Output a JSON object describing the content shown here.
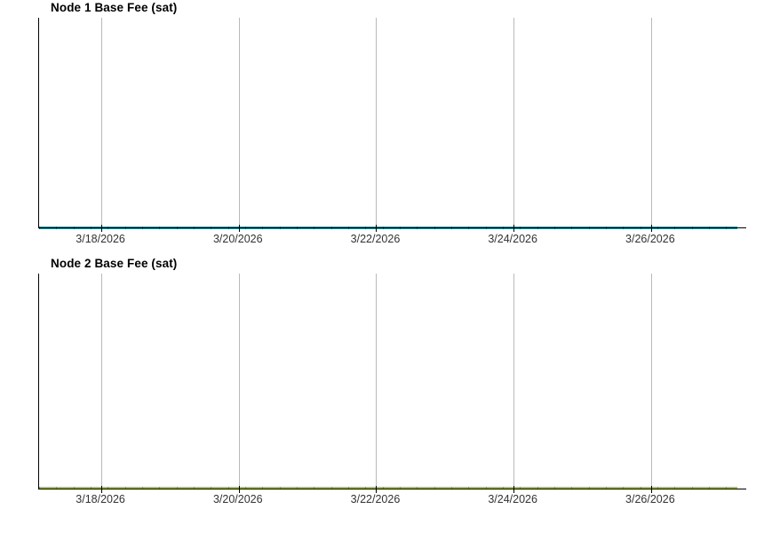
{
  "page": {
    "background_color": "#ffffff",
    "axis_color": "#000000",
    "gridline_color": "#b9b9b9",
    "label_color": "#323232"
  },
  "chart_data": [
    {
      "type": "line",
      "title": "Node 1 Base Fee (sat)",
      "xlabel": "",
      "ylabel": "",
      "y_axis_labels_visible": false,
      "grid": "vertical-only",
      "legend": "none",
      "x_ticks": [
        "3/18/2026",
        "3/20/2026",
        "3/22/2026",
        "3/24/2026",
        "3/26/2026"
      ],
      "x_range": [
        "3/17/2026 02:15",
        "3/27/2026 09:15"
      ],
      "ylim": [
        0,
        1
      ],
      "series": [
        {
          "name": "Node 1 Base Fee",
          "color": "#2f97a1",
          "marker_color": "#16646e",
          "value_constant": 0,
          "data_start": "3/17/2026 02:15",
          "data_end": "3/27/2026 06:00",
          "sample_interval_hours": 6
        }
      ]
    },
    {
      "type": "line",
      "title": "Node 2 Base Fee (sat)",
      "xlabel": "",
      "ylabel": "",
      "y_axis_labels_visible": false,
      "grid": "vertical-only",
      "legend": "none",
      "x_ticks": [
        "3/18/2026",
        "3/20/2026",
        "3/22/2026",
        "3/24/2026",
        "3/26/2026"
      ],
      "x_range": [
        "3/17/2026 02:15",
        "3/27/2026 09:15"
      ],
      "ylim": [
        0,
        1
      ],
      "series": [
        {
          "name": "Node 2 Base Fee",
          "color": "#a5c44c",
          "marker_color": "#7d9c2e",
          "value_constant": 0,
          "data_start": "3/17/2026 02:15",
          "data_end": "3/27/2026 06:00",
          "sample_interval_hours": 6
        }
      ]
    }
  ]
}
